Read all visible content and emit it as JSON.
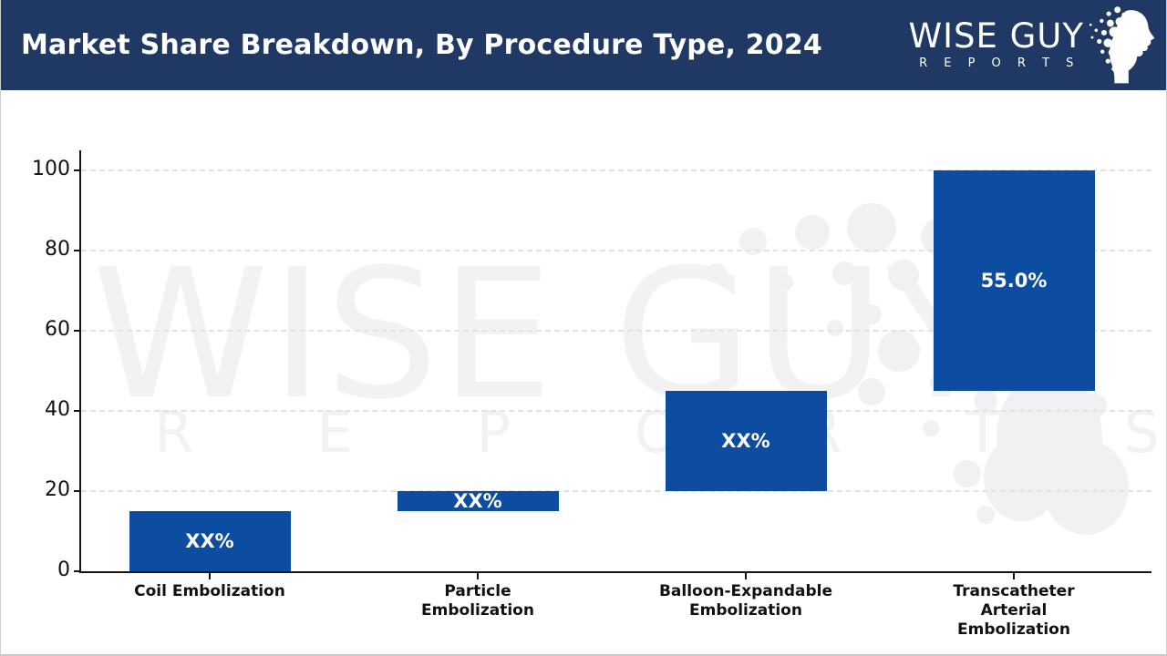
{
  "header": {
    "title": "Market Share Breakdown, By Procedure Type, 2024",
    "bg_color": "#1f3864",
    "logo": {
      "line1": "WISE GUY",
      "line2": "R E P O R T S"
    }
  },
  "watermark": {
    "line1": "WISE GUY",
    "line2": "R E P O R T S"
  },
  "chart_data": {
    "type": "bar",
    "variant": "waterfall",
    "title": "Market Share Breakdown, By Procedure Type, 2024",
    "categories": [
      "Coil Embolization",
      "Particle Embolization",
      "Balloon-Expandable Embolization",
      "Transcatheter Arterial Embolization"
    ],
    "category_lines": [
      [
        "Coil Embolization"
      ],
      [
        "Particle",
        "Embolization"
      ],
      [
        "Balloon-Expandable",
        "Embolization"
      ],
      [
        "Transcatheter",
        "Arterial",
        "Embolization"
      ]
    ],
    "segments": [
      {
        "category": "Coil Embolization",
        "start": 0,
        "end": 15,
        "label": "XX%"
      },
      {
        "category": "Particle Embolization",
        "start": 15,
        "end": 20,
        "label": "XX%"
      },
      {
        "category": "Balloon-Expandable Embolization",
        "start": 20,
        "end": 45,
        "label": "XX%"
      },
      {
        "category": "Transcatheter Arterial Embolization",
        "start": 45,
        "end": 100,
        "label": "55.0%"
      }
    ],
    "yticks": [
      0,
      20,
      40,
      60,
      80,
      100
    ],
    "ylim": [
      0,
      105
    ],
    "xlabel": "",
    "ylabel": "",
    "legend": "none",
    "grid": "horizontal-dashed",
    "bar_color": "#0c4da2",
    "bar_label_color": "#ffffff",
    "axis_color": "#151515"
  }
}
